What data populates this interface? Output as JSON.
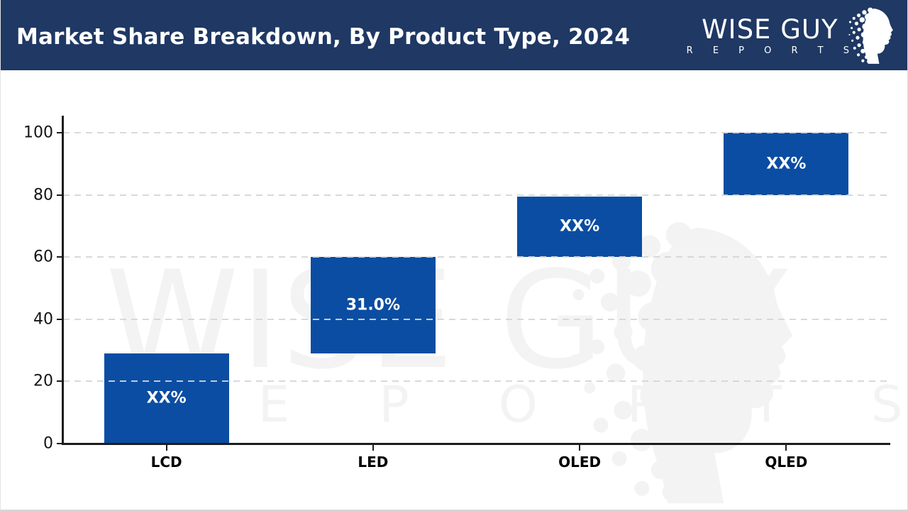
{
  "header": {
    "title": "Market Share Breakdown, By Product Type, 2024",
    "brand": {
      "name_line": "WISE GUY",
      "reports_line": "R E P O R T S"
    }
  },
  "watermark": {
    "name_line": "WISE GUY",
    "reports_line": "R E P O R T S"
  },
  "chart_data": {
    "type": "bar",
    "subtype": "waterfall-stacked-percentage",
    "title": "Market Share Breakdown, By Product Type, 2024",
    "categories": [
      "LCD",
      "LED",
      "OLED",
      "QLED"
    ],
    "segments": [
      {
        "category": "LCD",
        "from": 0,
        "to": 29,
        "label": "XX%"
      },
      {
        "category": "LED",
        "from": 29,
        "to": 60,
        "label": "31.0%"
      },
      {
        "category": "OLED",
        "from": 60,
        "to": 79.5,
        "label": "XX%"
      },
      {
        "category": "QLED",
        "from": 80,
        "to": 100,
        "label": "XX%"
      }
    ],
    "visible_value_led_pct": 31.0,
    "y_ticks": [
      0,
      20,
      40,
      60,
      80,
      100
    ],
    "ylim": [
      0,
      105
    ],
    "xlabel": "",
    "ylabel": "",
    "grid": "horizontal-dashed",
    "legend": "none",
    "colors": {
      "bar": "#0b4da2",
      "bar_label": "#ffffff",
      "header_bg": "#1f3864",
      "axis": "#1c1c1c",
      "gridline": "#d6d6d6",
      "watermark": "#f3f3f3"
    }
  }
}
